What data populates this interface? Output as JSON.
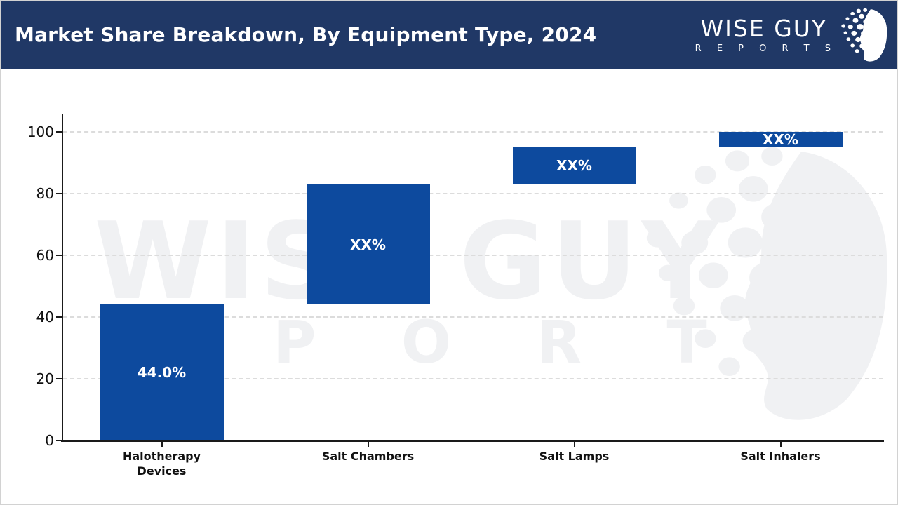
{
  "page": {
    "background": "#ffffff",
    "border_color": "#d2d2d2"
  },
  "header": {
    "bg_color": "#203866",
    "title": "Market Share Breakdown, By Equipment Type, 2024",
    "logo": {
      "wordmark": "WISE GUY",
      "subtitle": "R E P O R T S"
    }
  },
  "watermark": {
    "line1": "WISE GUY",
    "line2": "P O R T S"
  },
  "chart_data": {
    "type": "bar",
    "subtype": "waterfall",
    "title": "Market Share Breakdown, By Equipment Type, 2024",
    "categories": [
      "Halotherapy Devices",
      "Salt Chambers",
      "Salt Lamps",
      "Salt Inhalers"
    ],
    "category_label_lines": [
      [
        "Halotherapy",
        "Devices"
      ],
      [
        "Salt Chambers"
      ],
      [
        "Salt Lamps"
      ],
      [
        "Salt Inhalers"
      ]
    ],
    "segments": [
      {
        "category": "Halotherapy Devices",
        "start": 0,
        "end": 44,
        "label": "44.0%"
      },
      {
        "category": "Salt Chambers",
        "start": 44,
        "end": 83,
        "label": "XX%"
      },
      {
        "category": "Salt Lamps",
        "start": 83,
        "end": 95,
        "label": "XX%"
      },
      {
        "category": "Salt Inhalers",
        "start": 95,
        "end": 100,
        "label": "XX%"
      }
    ],
    "increments": [
      44,
      39,
      12,
      5
    ],
    "xlabel": "",
    "ylabel": "",
    "ylim": [
      0,
      100
    ],
    "yticks": [
      0,
      20,
      40,
      60,
      80,
      100
    ],
    "grid": "horizontal-dashed",
    "gridline_color": "#dcdcdc",
    "axis_color": "#1a1a1a",
    "bar_color": "#0d4a9e",
    "bar_label_color": "#ffffff",
    "legend": "none"
  }
}
